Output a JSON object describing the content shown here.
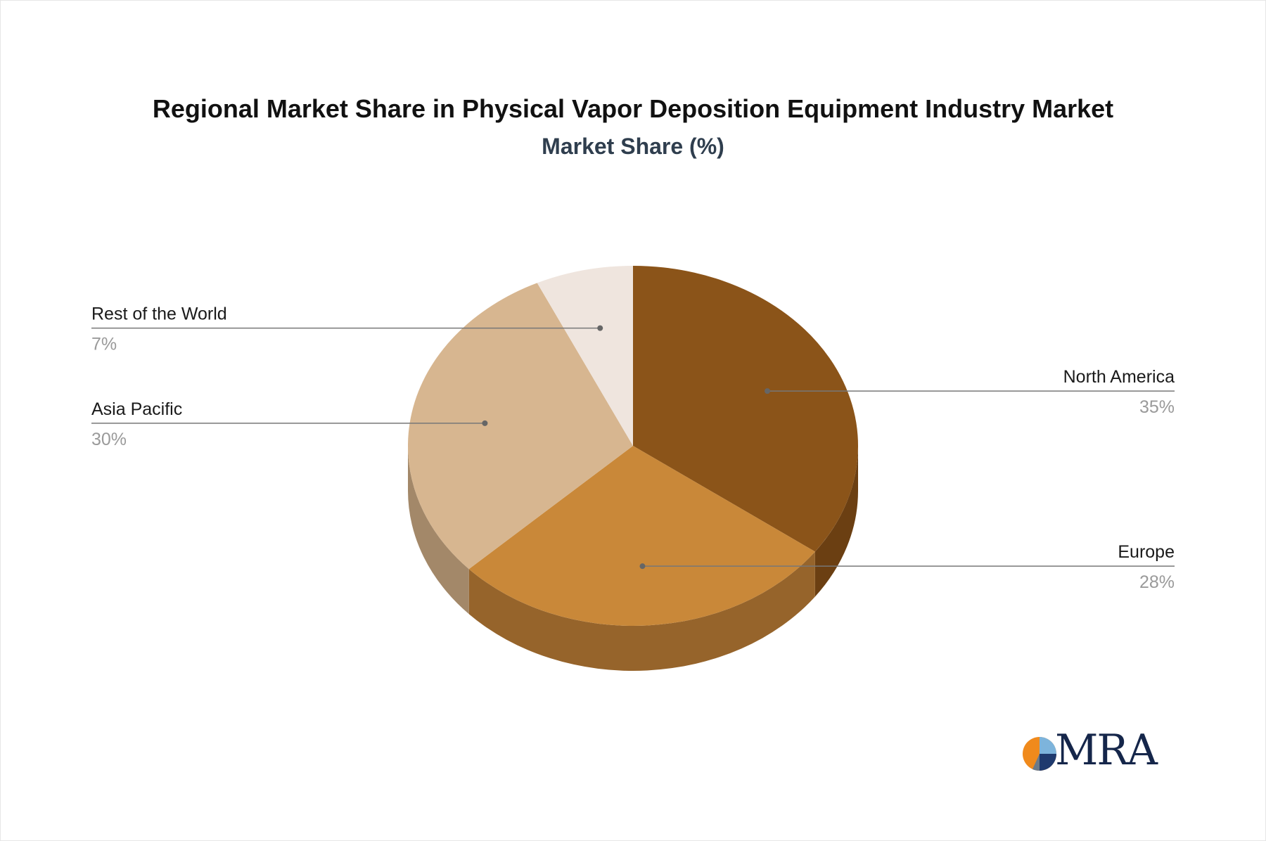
{
  "chart_data": {
    "type": "pie",
    "title": "Regional Market Share in Physical Vapor Deposition Equipment Industry Market",
    "subtitle": "Market Share (%)",
    "slices": [
      {
        "label": "North America",
        "value": 35,
        "value_label": "35%",
        "color": "#8b5419",
        "side_color": "#6b3f12"
      },
      {
        "label": "Europe",
        "value": 28,
        "value_label": "28%",
        "color": "#c98839",
        "side_color": "#96642b"
      },
      {
        "label": "Asia Pacific",
        "value": 30,
        "value_label": "30%",
        "color": "#d7b690",
        "side_color": "#a38869"
      },
      {
        "label": "Rest of the World",
        "value": 7,
        "value_label": "7%",
        "color": "#efe5de",
        "side_color": "#c9beb6"
      }
    ],
    "legend": "none"
  },
  "logo": {
    "text": "MRA"
  }
}
